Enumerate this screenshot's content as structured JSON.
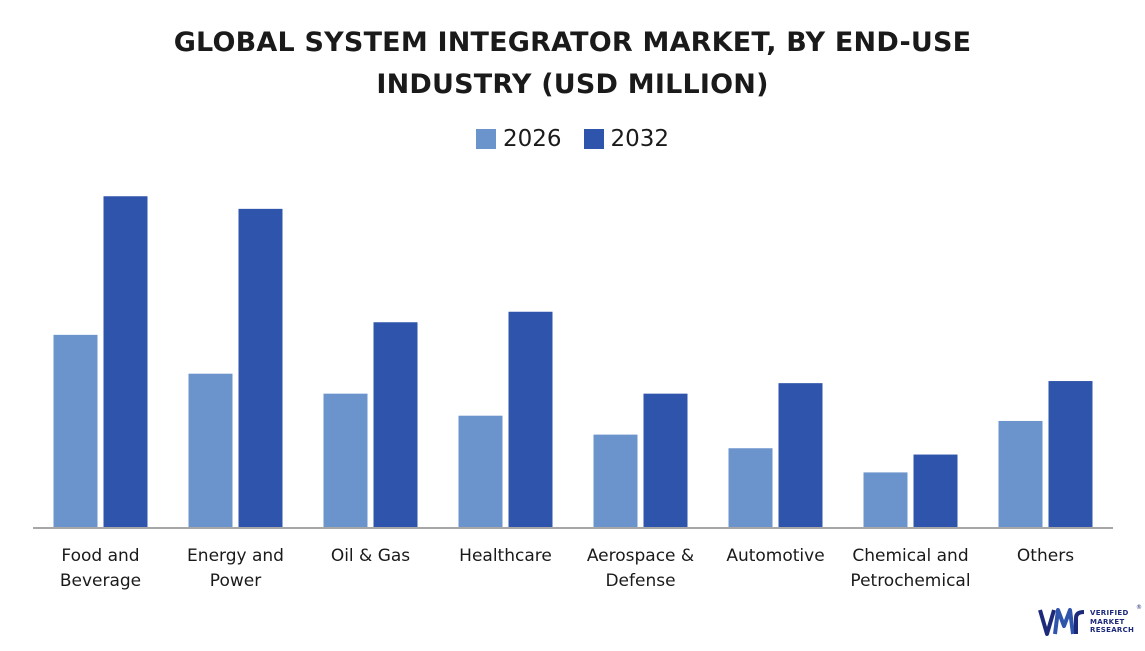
{
  "chart_data": {
    "type": "bar",
    "title_lines": [
      "GLOBAL SYSTEM INTEGRATOR MARKET, BY END-USE",
      "INDUSTRY (USD MILLION)"
    ],
    "categories": [
      [
        "Food and",
        "Beverage"
      ],
      [
        "Energy and",
        "Power"
      ],
      [
        "Oil & Gas"
      ],
      [
        "Healthcare"
      ],
      [
        "Aerospace &",
        "Defense"
      ],
      [
        "Automotive"
      ],
      [
        "Chemical and",
        "Petrochemical"
      ],
      [
        "Others"
      ]
    ],
    "series": [
      {
        "name": "2026",
        "color": "#6b94cc",
        "values": [
          183,
          146,
          127,
          106,
          88,
          75,
          52,
          101
        ]
      },
      {
        "name": "2032",
        "color": "#2f54ab",
        "values": [
          315,
          303,
          195,
          205,
          127,
          137,
          69,
          139
        ]
      }
    ],
    "ylim": [
      0,
      340
    ],
    "grid": false,
    "legend_position": "top-center",
    "y_axis_visible": false
  },
  "branding": {
    "logo_lines": [
      "VERIFIED",
      "MARKET",
      "RESEARCH"
    ],
    "logo_mark": "vmr",
    "registered": "®",
    "color": "#1d2a7a"
  }
}
